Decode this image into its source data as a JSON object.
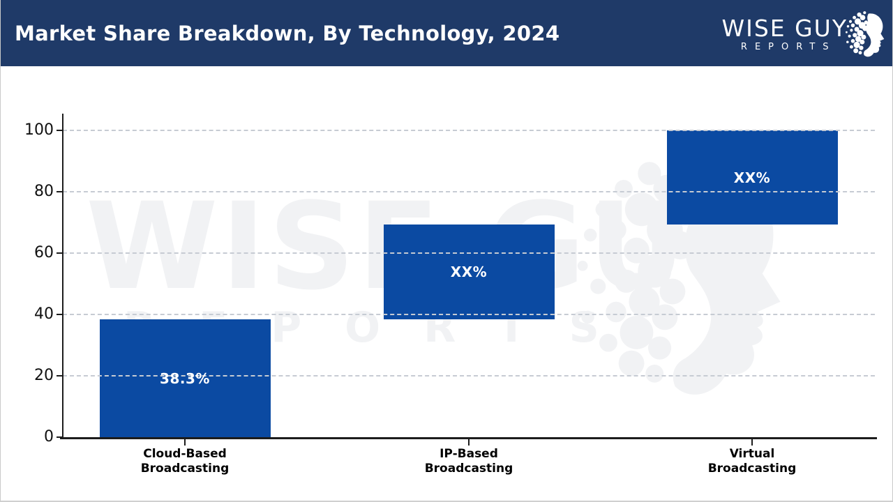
{
  "header": {
    "title": "Market Share Breakdown, By Technology, 2024",
    "logo": {
      "wordmark": "WISE GUY",
      "sub": "REPORTS"
    }
  },
  "watermark": {
    "wordmark": "WISE GUY",
    "sub": "REPORTS"
  },
  "chart_data": {
    "type": "bar",
    "subtype": "waterfall",
    "title": "Market Share Breakdown, By Technology, 2024",
    "categories": [
      "Cloud-Based\nBroadcasting",
      "IP-Based\nBroadcasting",
      "Virtual\nBroadcasting"
    ],
    "segments": [
      {
        "category": "Cloud-Based Broadcasting",
        "start": 0,
        "end": 38.3,
        "label": "38.3%"
      },
      {
        "category": "IP-Based Broadcasting",
        "start": 38.3,
        "end": 69.3,
        "label": "XX%"
      },
      {
        "category": "Virtual Broadcasting",
        "start": 69.3,
        "end": 100,
        "label": "XX%"
      }
    ],
    "values": [
      38.3,
      31.0,
      30.7
    ],
    "bar_labels": [
      "38.3%",
      "XX%",
      "XX%"
    ],
    "ylim": [
      0,
      100
    ],
    "yticks": [
      0,
      20,
      40,
      60,
      80,
      100
    ],
    "xlabel": "",
    "ylabel": "",
    "grid": "horizontal-dashed",
    "legend": "none"
  },
  "colors": {
    "header_bg": "#1f3a68",
    "bar": "#0b4aa2",
    "bar_label": "#ffffff",
    "axis": "#1c1c1c",
    "grid": "#c6cbd3",
    "watermark": "#f1f2f4",
    "page_border": "#c9c9c9"
  }
}
